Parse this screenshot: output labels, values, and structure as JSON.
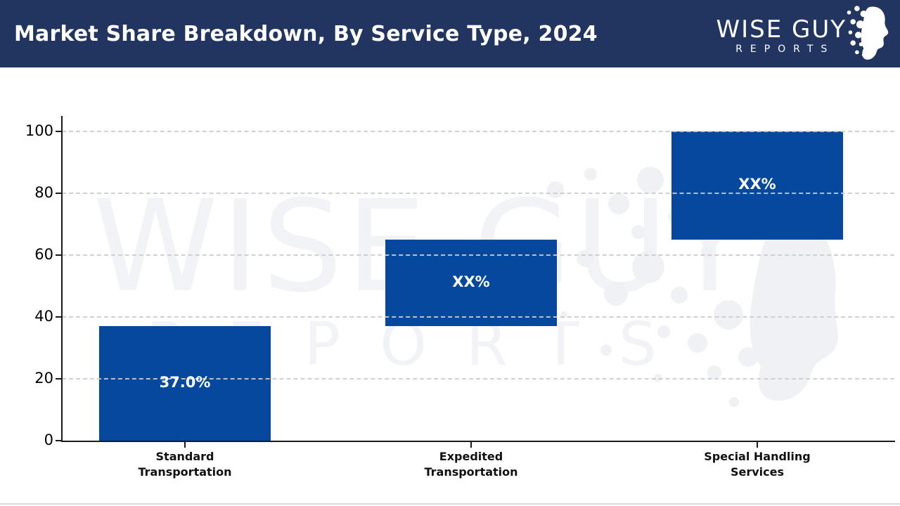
{
  "header": {
    "title": "Market Share Breakdown, By Service Type, 2024",
    "logo": {
      "wordmark": "WISE GUY",
      "subtext": "REPORTS"
    }
  },
  "watermark": {
    "wordmark": "WISE GUY",
    "subtext": "REPORTS"
  },
  "chart_data": {
    "type": "bar",
    "subtype": "waterfall",
    "title": "Market Share Breakdown, By Service Type, 2024",
    "categories": [
      "Standard Transportation",
      "Expedited Transportation",
      "Special Handling Services"
    ],
    "x_tick_labels": [
      "Standard\nTransportation",
      "Expedited\nTransportation",
      "Special Handling\nServices"
    ],
    "segments": [
      {
        "category": "Standard Transportation",
        "start": 0,
        "end": 37,
        "label": "37.0%"
      },
      {
        "category": "Expedited Transportation",
        "start": 37,
        "end": 65,
        "label": "XX%"
      },
      {
        "category": "Special Handling Services",
        "start": 65,
        "end": 100,
        "label": "XX%"
      }
    ],
    "ylim": [
      0,
      100
    ],
    "yticks": [
      0,
      20,
      40,
      60,
      80,
      100
    ],
    "grid": {
      "horizontal": true,
      "style": "dashed"
    },
    "legend": null,
    "bar_color": "#05489d",
    "bar_label_color": "#ffffff"
  },
  "colors": {
    "header_bg": "#213560",
    "page_bg": "#ffffff",
    "axis": "#1a1a1a",
    "gridline": "#cccccc",
    "watermark": "#f2f3f6",
    "bottom_line": "#d9d9d9"
  }
}
